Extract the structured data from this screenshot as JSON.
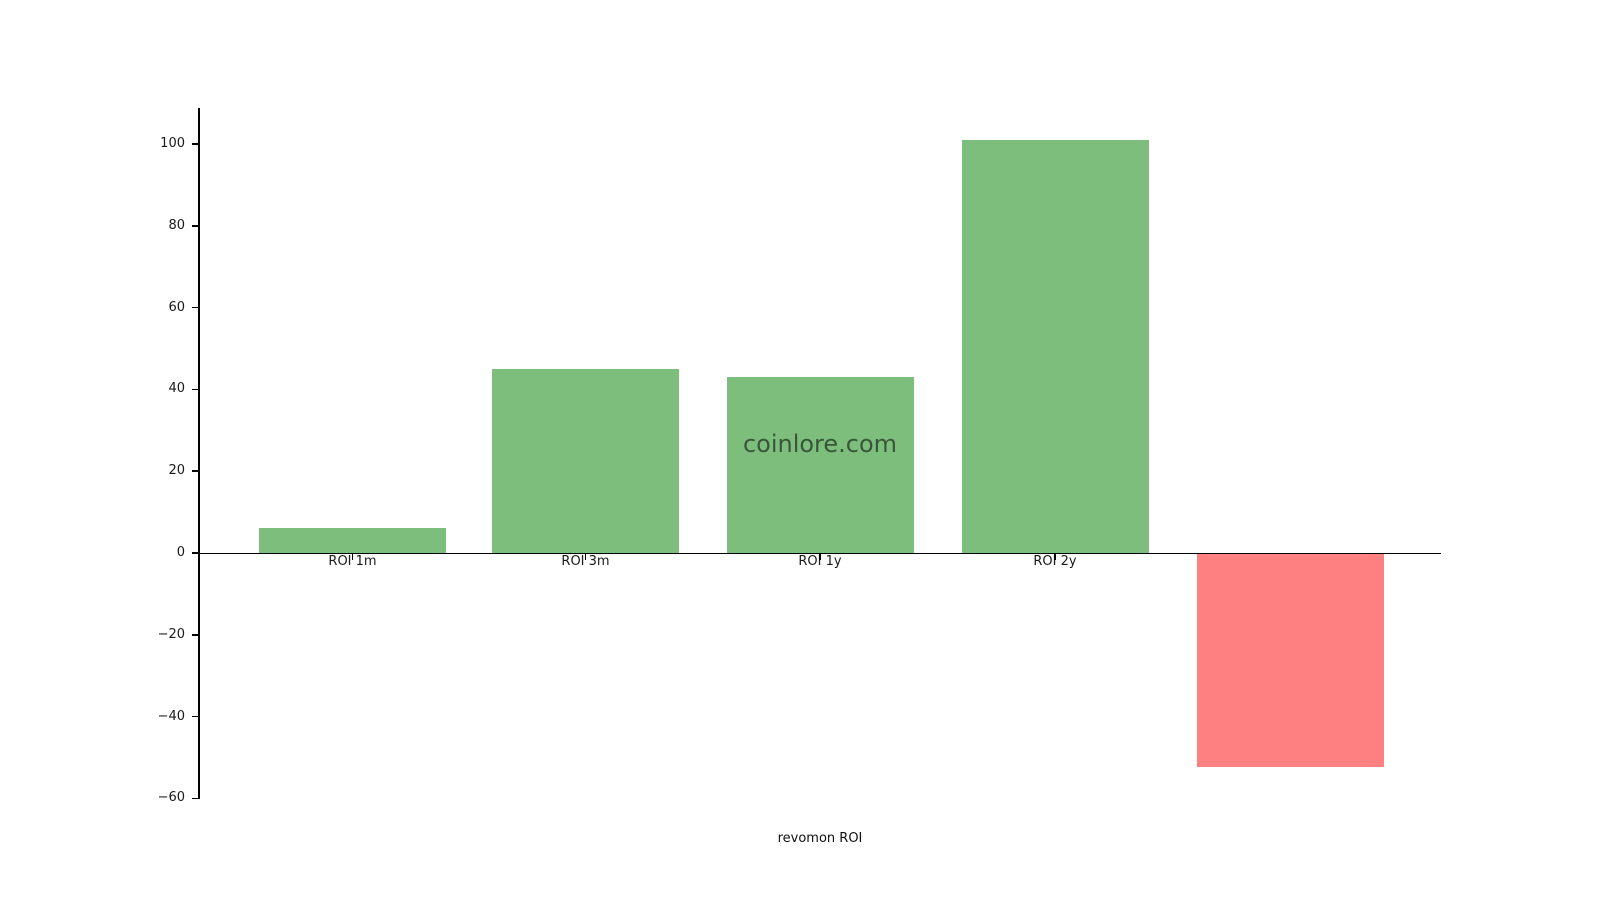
{
  "figure": {
    "watermark": "coinlore.com",
    "background": "#ffffff"
  },
  "chart_data": {
    "type": "bar",
    "title": "revomon ROI",
    "xlabel": "revomon ROI",
    "ylabel": "",
    "categories": [
      "ROI 1m",
      "ROI 3m",
      "ROI 1y",
      "ROI 2y",
      ""
    ],
    "values": [
      6,
      45,
      43,
      101,
      -52
    ],
    "bar_colors": [
      "#7dbe7d",
      "#7dbe7d",
      "#7dbe7d",
      "#7dbe7d",
      "#ff8080"
    ],
    "positive_color": "#7dbe7d",
    "negative_color": "#ff8080",
    "yticks": [
      {
        "value": 100,
        "label": "100"
      },
      {
        "value": 80,
        "label": "80"
      },
      {
        "value": 60,
        "label": "60"
      },
      {
        "value": 40,
        "label": "40"
      },
      {
        "value": 20,
        "label": "20"
      },
      {
        "value": 0,
        "label": "0"
      },
      {
        "value": -20,
        "label": "−20"
      },
      {
        "value": -40,
        "label": "−40"
      },
      {
        "value": -60,
        "label": "−60"
      }
    ],
    "ylim": [
      -60,
      109
    ],
    "grid": false,
    "legend": null
  }
}
